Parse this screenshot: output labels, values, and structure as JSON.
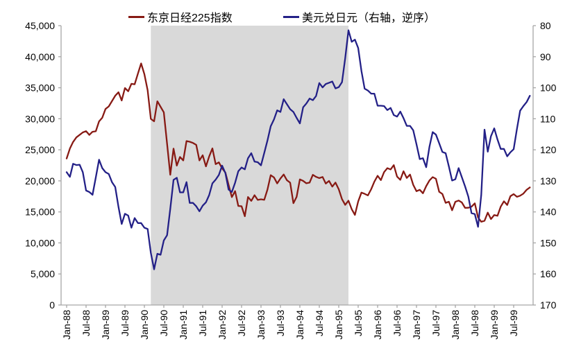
{
  "legend": [
    {
      "label": "东京日经225指数",
      "color": "#871A14"
    },
    {
      "label": "美元兑日元（右轴，逆序）",
      "color": "#232087"
    }
  ],
  "chart_data": {
    "type": "line",
    "title": "",
    "x_unit": "month",
    "x_start": "Jan-88",
    "x_end": "Dec-99",
    "x_tick_labels": [
      "Jan-88",
      "Jul-88",
      "Jan-89",
      "Jul-89",
      "Jan-90",
      "Jul-90",
      "Jan-91",
      "Jul-91",
      "Jan-92",
      "Jul-92",
      "Jan-93",
      "Jul-93",
      "Jan-94",
      "Jul-94",
      "Jan-95",
      "Jul-95",
      "Jan-96",
      "Jul-96",
      "Jan-97",
      "Jul-97",
      "Jan-98",
      "Jul-98",
      "Jan-99",
      "Jul-99"
    ],
    "left_axis": {
      "min": 0,
      "max": 45000,
      "step": 5000,
      "labels": [
        "0",
        "5,000",
        "10,000",
        "15,000",
        "20,000",
        "25,000",
        "30,000",
        "35,000",
        "40,000",
        "45,000"
      ]
    },
    "right_axis": {
      "min": 80,
      "max": 170,
      "step": 10,
      "reversed": true,
      "labels": [
        "80",
        "90",
        "100",
        "110",
        "120",
        "130",
        "140",
        "150",
        "160",
        "170"
      ]
    },
    "shaded_region": {
      "start_label": "Mar-90",
      "end_label": "Apr-95",
      "start_month_index": 26,
      "end_month_index": 87,
      "color": "#D9D9D9"
    },
    "axis_color": "#A6A6A6",
    "grid": false,
    "legend_position": "top",
    "series": [
      {
        "name": "东京日经225指数",
        "axis": "left",
        "color": "#871A14",
        "values": [
          23600,
          25200,
          26260,
          27000,
          27400,
          27800,
          28000,
          27400,
          27900,
          27980,
          29580,
          30159,
          31580,
          31986,
          32839,
          33714,
          34267,
          32949,
          34954,
          34431,
          35637,
          35549,
          37269,
          38916,
          37189,
          34592,
          29980,
          29585,
          32818,
          31940,
          31036,
          25978,
          20984,
          25194,
          22455,
          23849,
          23293,
          26409,
          26292,
          26111,
          25790,
          23291,
          24121,
          22336,
          23916,
          25222,
          22687,
          22984,
          22023,
          21339,
          19346,
          17391,
          18348,
          15952,
          15910,
          14309,
          17399,
          16767,
          17684,
          16925,
          17024,
          16953,
          18591,
          20919,
          20552,
          19590,
          20380,
          21027,
          20106,
          19703,
          16406,
          17417,
          20229,
          19997,
          19612,
          19725,
          20974,
          20644,
          20450,
          20629,
          19564,
          19990,
          19070,
          19723,
          18650,
          17053,
          16140,
          16807,
          15437,
          14517,
          16677,
          18117,
          17913,
          17655,
          18650,
          19868,
          20813,
          20126,
          21407,
          22041,
          21846,
          22531,
          20693,
          20167,
          21556,
          20467,
          21020,
          19361,
          18330,
          18557,
          18003,
          19151,
          20069,
          20605,
          20331,
          18229,
          17888,
          16459,
          16636,
          15259,
          16628,
          16832,
          16527,
          15641,
          15671,
          15830,
          16379,
          14108,
          13406,
          13565,
          14884,
          13842,
          14499,
          14368,
          15837,
          16702,
          16112,
          17530,
          17862,
          17430,
          17605,
          17942,
          18559,
          18934
        ]
      },
      {
        "name": "美元兑日元（右轴，逆序）",
        "axis": "right",
        "color": "#232087",
        "values": [
          127.2,
          128.7,
          124.5,
          124.9,
          124.8,
          127.2,
          133.1,
          133.6,
          134.5,
          128.9,
          123.2,
          125.9,
          127.2,
          127.8,
          130.4,
          132.0,
          138.4,
          143.9,
          140.6,
          141.2,
          145.1,
          142.0,
          143.6,
          143.6,
          145.1,
          145.5,
          153.2,
          158.5,
          153.5,
          153.8,
          149.2,
          147.5,
          139.0,
          129.7,
          129.0,
          133.7,
          133.7,
          130.4,
          137.1,
          137.1,
          138.2,
          139.8,
          138.0,
          136.9,
          134.6,
          130.8,
          129.6,
          128.1,
          125.1,
          127.5,
          132.8,
          133.6,
          130.6,
          126.9,
          125.7,
          126.3,
          122.7,
          121.1,
          123.8,
          124.0,
          125.0,
          121.0,
          117.0,
          112.4,
          110.2,
          107.3,
          107.8,
          103.7,
          105.3,
          106.9,
          107.8,
          109.7,
          111.5,
          106.3,
          105.1,
          103.5,
          104.0,
          102.7,
          98.5,
          99.9,
          98.8,
          98.4,
          98.0,
          100.2,
          99.8,
          98.2,
          90.5,
          81.5,
          85.2,
          84.5,
          87.2,
          94.6,
          100.3,
          100.9,
          101.9,
          101.9,
          105.8,
          105.8,
          105.9,
          107.2,
          106.5,
          108.8,
          109.3,
          107.7,
          109.8,
          112.3,
          112.3,
          113.7,
          118.2,
          123.0,
          122.7,
          125.6,
          119.0,
          114.3,
          115.1,
          117.9,
          120.7,
          121.1,
          125.4,
          129.9,
          129.5,
          125.9,
          128.8,
          131.8,
          135.1,
          140.4,
          140.7,
          144.8,
          134.5,
          113.5,
          120.6,
          115.6,
          113.1,
          116.7,
          119.7,
          119.7,
          122.1,
          120.8,
          119.8,
          113.3,
          107.4,
          105.9,
          104.6,
          102.6
        ]
      }
    ]
  }
}
